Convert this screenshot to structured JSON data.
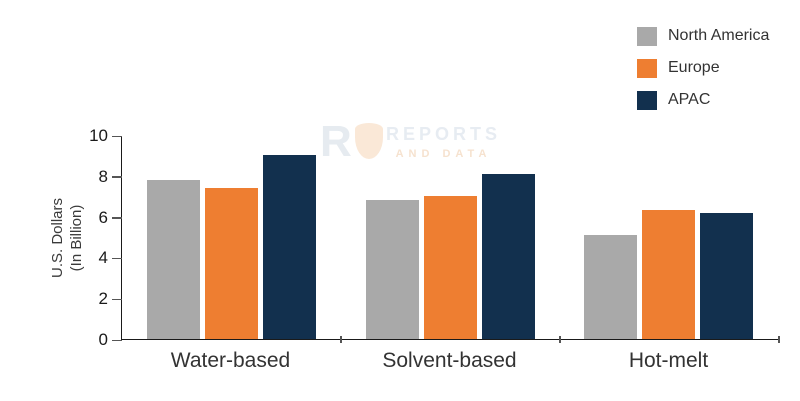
{
  "accent_colors": {
    "axis": "#1a1a1a",
    "tick": "#555555",
    "label_text": "#333333"
  },
  "watermark": {
    "logo_letter": "R",
    "line1": "REPORTS",
    "line2": "AND DATA"
  },
  "chart_data": {
    "type": "bar",
    "title": "",
    "categories": [
      "Water-based",
      "Solvent-based",
      "Hot-melt"
    ],
    "series": [
      {
        "name": "North America",
        "color": "#a9a9a9",
        "values": [
          7.8,
          6.8,
          5.1
        ]
      },
      {
        "name": "Europe",
        "color": "#ee7e31",
        "values": [
          7.4,
          7.0,
          6.3
        ]
      },
      {
        "name": "APAC",
        "color": "#12304e",
        "values": [
          9.0,
          8.1,
          6.2
        ]
      }
    ],
    "xlabel": "",
    "ylabel": "U.S. Dollars (In Billion)",
    "ylabel_line1": "U.S. Dollars",
    "ylabel_line2": "(In Billion)",
    "ylim": [
      0,
      10
    ],
    "ytick_step": 2,
    "ytick_labels": [
      "0",
      "2",
      "4",
      "6",
      "8",
      "10"
    ],
    "grid": false,
    "legend_position": "top-right"
  }
}
